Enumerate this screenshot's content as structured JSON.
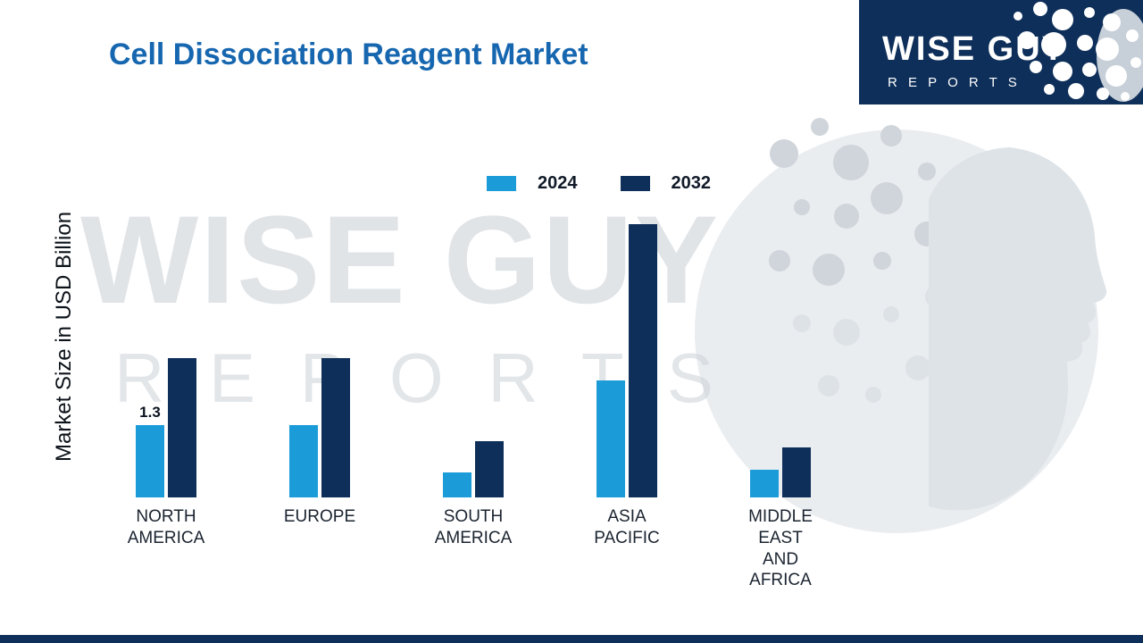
{
  "title": "Cell Dissociation Reagent Market",
  "y_axis_label": "Market Size in USD Billion",
  "watermark": {
    "line1": "WISE GUY",
    "line2": "R E P O R T S"
  },
  "logo": {
    "name": "WISE GUY",
    "sub": "R E P O R T S"
  },
  "legend": {
    "items": [
      {
        "label": "2024",
        "color": "#1b9cd9"
      },
      {
        "label": "2032",
        "color": "#0e2f5a"
      }
    ]
  },
  "colors": {
    "series_2024": "#1b9cd9",
    "series_2032": "#0e2f5a",
    "title_blue": "#1767b0",
    "navy": "#0e2f5a",
    "watermark_gray": "#ccd2d8"
  },
  "chart_data": {
    "type": "bar",
    "title": "Cell Dissociation Reagent Market",
    "ylabel": "Market Size in USD Billion",
    "categories": [
      "NORTH AMERICA",
      "EUROPE",
      "SOUTH AMERICA",
      "ASIA PACIFIC",
      "MIDDLE EAST AND AFRICA"
    ],
    "category_lines": [
      [
        "NORTH",
        "AMERICA"
      ],
      [
        "EUROPE"
      ],
      [
        "SOUTH",
        "AMERICA"
      ],
      [
        "ASIA",
        "PACIFIC"
      ],
      [
        "MIDDLE",
        "EAST",
        "AND",
        "AFRICA"
      ]
    ],
    "series": [
      {
        "name": "2024",
        "color": "#1b9cd9",
        "values": [
          1.3,
          1.3,
          0.45,
          2.1,
          0.5
        ]
      },
      {
        "name": "2032",
        "color": "#0e2f5a",
        "values": [
          2.5,
          2.5,
          1.0,
          4.9,
          0.9
        ]
      }
    ],
    "data_labels": [
      {
        "series": "2024",
        "category": "NORTH AMERICA",
        "text": "1.3"
      }
    ],
    "ylim": [
      0,
      5.0
    ],
    "grid": false,
    "legend_position": "top-center"
  }
}
